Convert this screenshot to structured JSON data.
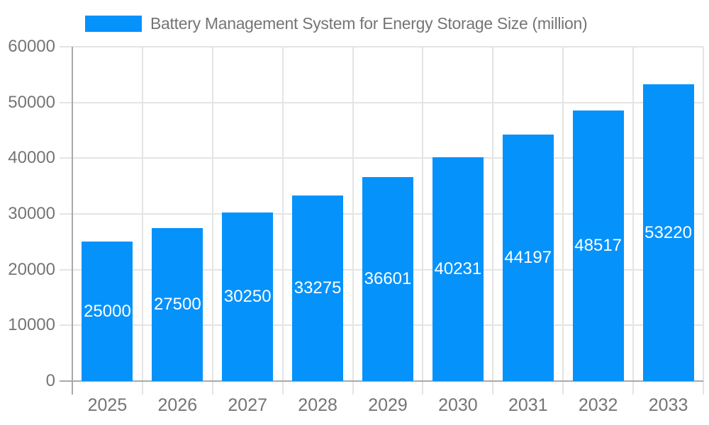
{
  "chart_data": {
    "type": "bar",
    "title": "Battery Management System for Energy Storage Size (million)",
    "series_name": "Battery Management System for Energy Storage Size (million)",
    "categories": [
      "2025",
      "2026",
      "2027",
      "2028",
      "2029",
      "2030",
      "2031",
      "2032",
      "2033"
    ],
    "values": [
      25000,
      27500,
      30250,
      33275,
      36601,
      40231,
      44197,
      48517,
      53220
    ],
    "xlabel": "",
    "ylabel": "",
    "ylim": [
      0,
      60000
    ],
    "yticks": [
      0,
      10000,
      20000,
      30000,
      40000,
      50000,
      60000
    ],
    "grid": "both",
    "legend_position": "top-left",
    "value_labels": "inside-center",
    "colors": {
      "bar": "#0592fb",
      "value_label": "#ffffff",
      "axis_text": "#757575",
      "gridline": "#e4e4e4",
      "axis_line": "#a9a9a9",
      "background": "#ffffff"
    }
  }
}
